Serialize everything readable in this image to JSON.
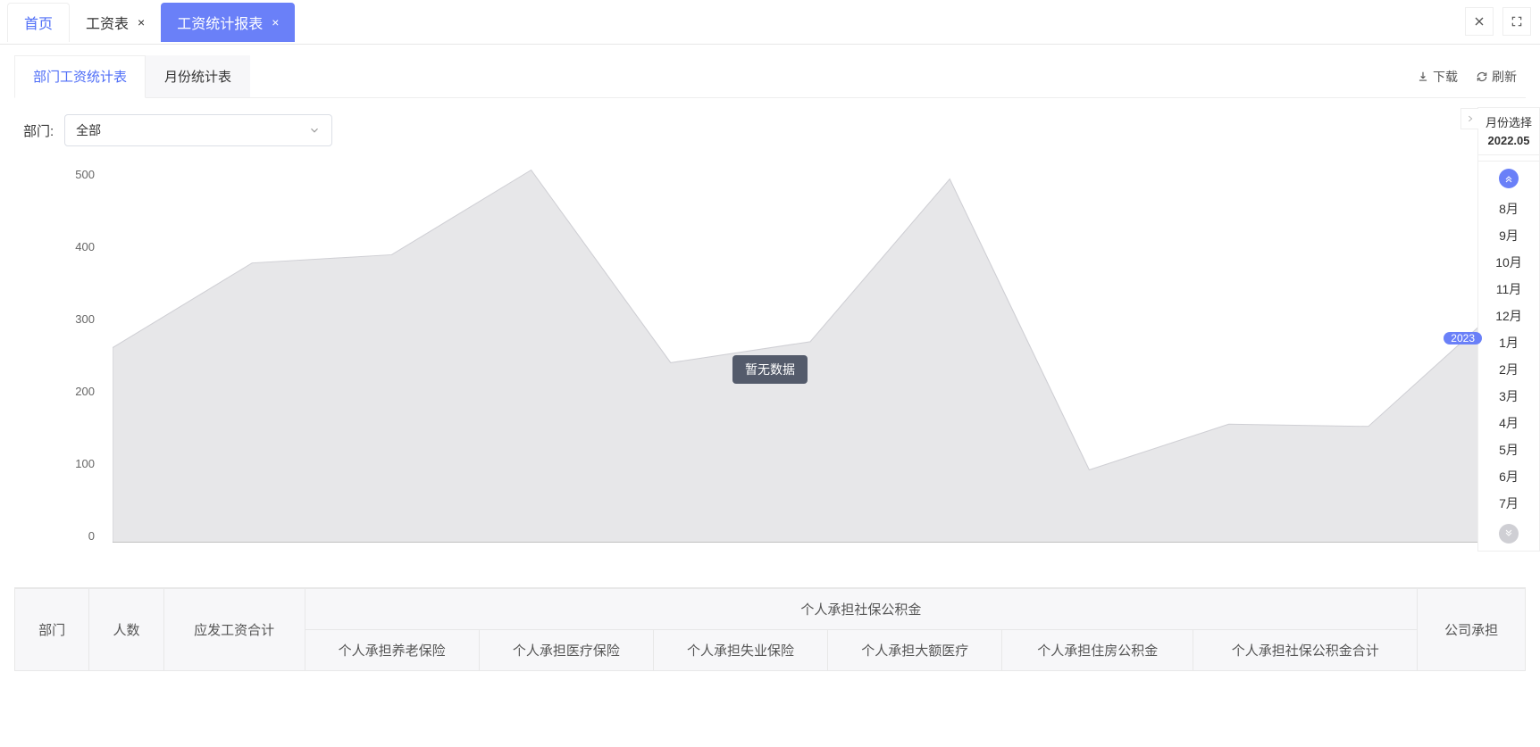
{
  "topTabs": {
    "home": "首页",
    "tabs": [
      {
        "label": "工资表",
        "active": false
      },
      {
        "label": "工资统计报表",
        "active": true
      }
    ]
  },
  "subTabs": [
    {
      "label": "部门工资统计表",
      "active": true
    },
    {
      "label": "月份统计表",
      "active": false
    }
  ],
  "actions": {
    "download": "下载",
    "refresh": "刷新"
  },
  "filter": {
    "label": "部门:",
    "value": "全部"
  },
  "chart": {
    "type": "area",
    "ylim": [
      0,
      500
    ],
    "yticks": [
      0,
      100,
      200,
      300,
      400,
      500
    ],
    "tick_fontsize": 13,
    "tick_color": "#666666",
    "values": [
      260,
      373,
      384,
      497,
      240,
      268,
      485,
      97,
      158,
      155,
      323
    ],
    "fill_color": "#e7e7e9",
    "stroke_color": "#cfcfd4",
    "stroke_width": 1,
    "background_color": "#ffffff",
    "no_data_label": "暂无数据",
    "tooltip_bg": "#545b6b",
    "tooltip_text_color": "#ffffff"
  },
  "table": {
    "cols_fixed": [
      "部门",
      "人数",
      "应发工资合计"
    ],
    "group_header": "个人承担社保公积金",
    "group_cols": [
      "个人承担养老保险",
      "个人承担医疗保险",
      "个人承担失业保险",
      "个人承担大额医疗",
      "个人承担住房公积金",
      "个人承担社保公积金合计"
    ],
    "next_col_partial": "公司承担"
  },
  "monthPanel": {
    "header": "月份选择",
    "selected": "2022.05",
    "yearBadge": "2023",
    "months": [
      "8月",
      "9月",
      "10月",
      "11月",
      "12月",
      "1月",
      "2月",
      "3月",
      "4月",
      "5月",
      "6月",
      "7月"
    ]
  },
  "colors": {
    "accent": "#6a80f8",
    "tab_active_bg": "#6a80f8",
    "link": "#4f6ef7",
    "border": "#e8e8e8",
    "table_header_bg": "#f7f7f9"
  }
}
